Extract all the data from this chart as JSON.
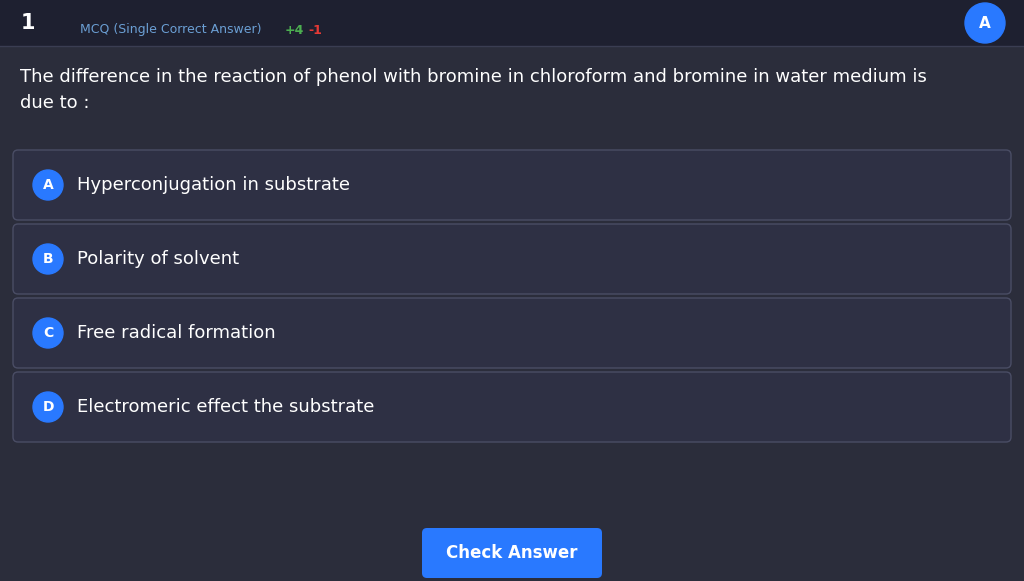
{
  "bg_color": "#2b2d3b",
  "header_bg": "#1e2030",
  "header_text": "MCQ (Single Correct Answer)",
  "header_text_color": "#6b9fd4",
  "header_num": "1",
  "header_num_color": "#ffffff",
  "plus4_color": "#4caf50",
  "minus1_color": "#e53935",
  "question_line1": "The difference in the reaction of phenol with bromine in chloroform and bromine in water medium is",
  "question_line2": "due to :",
  "question_color": "#ffffff",
  "options": [
    {
      "label": "A",
      "text": "Hyperconjugation in substrate"
    },
    {
      "label": "B",
      "text": "Polarity of solvent"
    },
    {
      "label": "C",
      "text": "Free radical formation"
    },
    {
      "label": "D",
      "text": "Electromeric effect the substrate"
    }
  ],
  "option_bg": "#2e3044",
  "option_border": "#4a4d65",
  "option_text_color": "#ffffff",
  "option_label_bg": "#2979ff",
  "option_label_color": "#ffffff",
  "btn_text": "Check Answer",
  "btn_bg": "#2979ff",
  "btn_text_color": "#ffffff",
  "avatar_bg": "#2979ff",
  "avatar_label": "A",
  "fig_width": 10.24,
  "fig_height": 5.81,
  "dpi": 100
}
